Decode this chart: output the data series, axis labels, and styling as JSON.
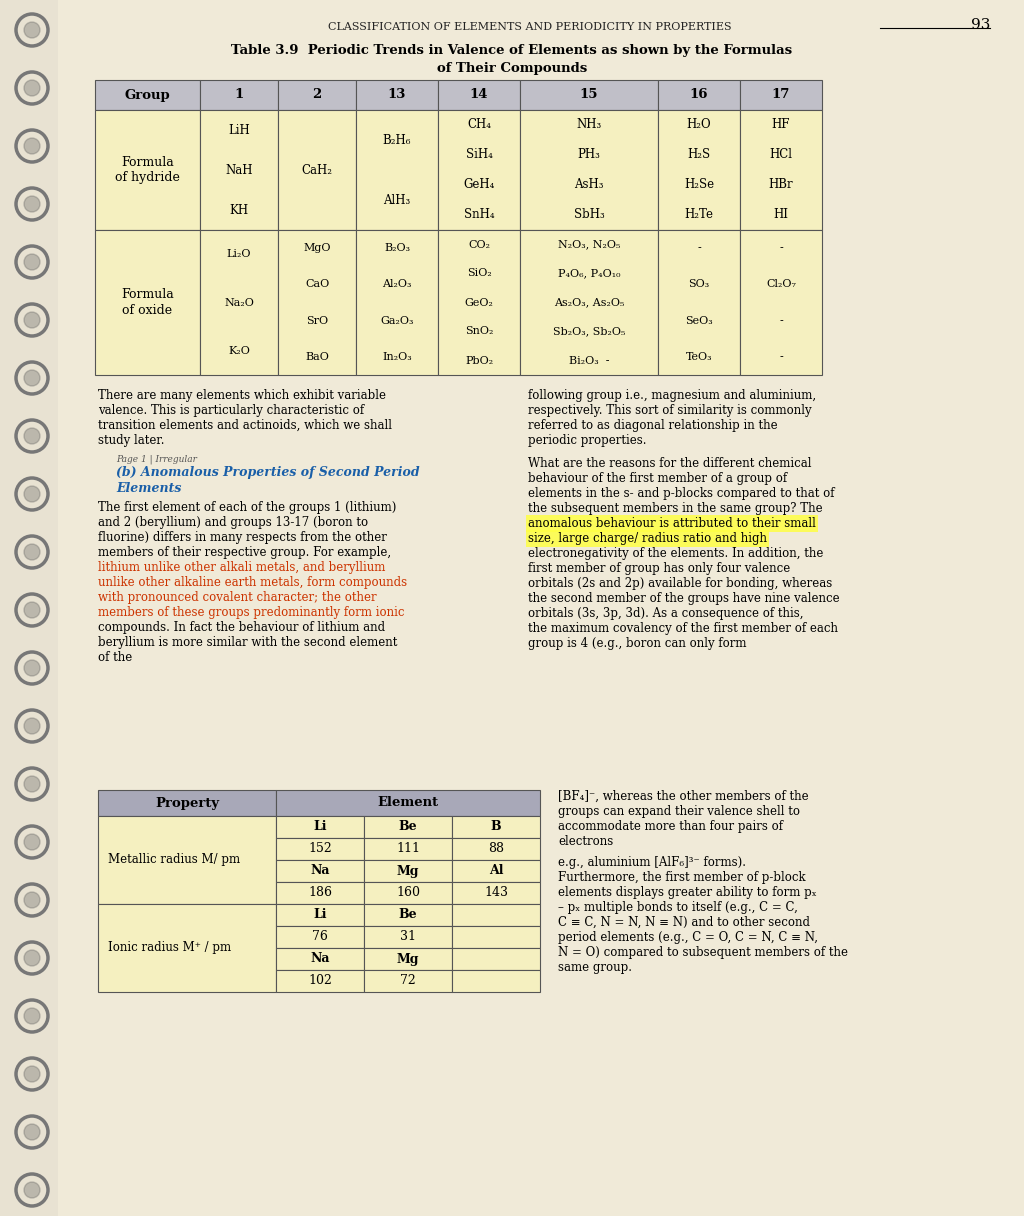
{
  "page_number": "93",
  "header": "CLASSIFICATION OF ELEMENTS AND PERIODICITY IN PROPERTIES",
  "table_title_line1": "Table 3.9  Periodic Trends in Valence of Elements as shown by the Formulas",
  "table_title_line2": "of Their Compounds",
  "table": {
    "col_headers": [
      "Group",
      "1",
      "2",
      "13",
      "14",
      "15",
      "16",
      "17"
    ],
    "header_bg": "#c0bfc8",
    "cell_bg": "#f5f0c0",
    "row1_label_line1": "Formula",
    "row1_label_line2": "of hydride",
    "row1_data": {
      "1": [
        "LiH",
        "NaH",
        "KH"
      ],
      "2": [
        "CaH₂"
      ],
      "13": [
        "B₂H₆",
        "AlH₃"
      ],
      "14": [
        "CH₄",
        "SiH₄",
        "GeH₄",
        "SnH₄"
      ],
      "15": [
        "NH₃",
        "PH₃",
        "AsH₃",
        "SbH₃"
      ],
      "16": [
        "H₂O",
        "H₂S",
        "H₂Se",
        "H₂Te"
      ],
      "17": [
        "HF",
        "HCl",
        "HBr",
        "HI"
      ]
    },
    "row2_label_line1": "Formula",
    "row2_label_line2": "of oxide",
    "row2_data": {
      "1": [
        "Li₂O",
        "Na₂O",
        "K₂O"
      ],
      "2": [
        "MgO",
        "CaO",
        "SrO",
        "BaO"
      ],
      "13": [
        "B₂O₃",
        "Al₂O₃",
        "Ga₂O₃",
        "In₂O₃"
      ],
      "14": [
        "CO₂",
        "SiO₂",
        "GeO₂",
        "SnO₂",
        "PbO₂"
      ],
      "15": [
        "N₂O₃, N₂O₅",
        "P₄O₆, P₄O₁₀",
        "As₂O₃, As₂O₅",
        "Sb₂O₃, Sb₂O₅",
        "Bi₂O₃  -"
      ],
      "16": [
        "-",
        "SO₃",
        "SeO₃",
        "TeO₃"
      ],
      "17": [
        "-",
        "Cl₂O₇",
        "-",
        "-"
      ]
    }
  },
  "small_table": {
    "header_bg": "#a8a8b8",
    "cell_bg": "#f5f0c0",
    "property_col": "Property",
    "element_col": "Element",
    "rows": [
      {
        "property": "Metallic radius M/ pm",
        "sub_rows": [
          {
            "elements": [
              "Li",
              "Be",
              "B"
            ],
            "bold": true
          },
          {
            "elements": [
              "152",
              "111",
              "88"
            ],
            "bold": false
          },
          {
            "elements": [
              "Na",
              "Mg",
              "Al"
            ],
            "bold": true
          },
          {
            "elements": [
              "186",
              "160",
              "143"
            ],
            "bold": false
          }
        ]
      },
      {
        "property": "Ionic radius M⁺ / pm",
        "sub_rows": [
          {
            "elements": [
              "Li",
              "Be",
              ""
            ],
            "bold": true
          },
          {
            "elements": [
              "76",
              "31",
              ""
            ],
            "bold": false
          },
          {
            "elements": [
              "Na",
              "Mg",
              ""
            ],
            "bold": true
          },
          {
            "elements": [
              "102",
              "72",
              ""
            ],
            "bold": false
          }
        ]
      }
    ]
  },
  "page_bg": "#e8e2d2",
  "book_page_bg": "#f0ead8",
  "spiral_color": "#777777"
}
